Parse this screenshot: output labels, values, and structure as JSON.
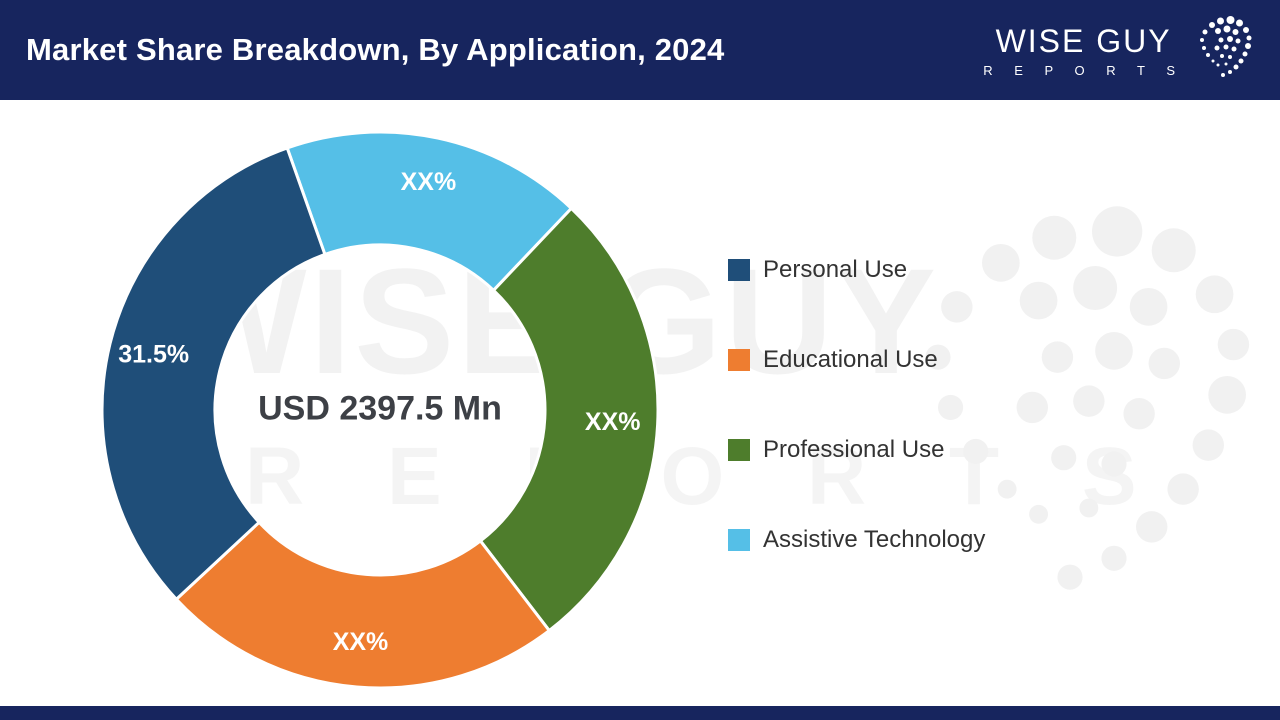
{
  "header": {
    "title": "Market Share Breakdown, By Application, 2024",
    "logo": {
      "line1": "WISE GUY",
      "line2": "R E P O R T S"
    }
  },
  "watermark": {
    "line1": "WISE GUY",
    "line2": "R E P O R T S"
  },
  "chart_data": {
    "type": "donut",
    "title": "Market Share Breakdown, By Application, 2024",
    "center_label": "USD 2397.5 Mn",
    "unit": "%",
    "start_angle_deg": -109.5,
    "segments": [
      {
        "name": "Assistive Technology",
        "value": 17.5,
        "display_label": "XX%",
        "color": "#55bfe7"
      },
      {
        "name": "Professional Use",
        "value": 27.5,
        "display_label": "XX%",
        "color": "#4e7d2c"
      },
      {
        "name": "Educational Use",
        "value": 23.5,
        "display_label": "XX%",
        "color": "#ee7d30"
      },
      {
        "name": "Personal Use",
        "value": 31.5,
        "display_label": "31.5%",
        "color": "#1f4e79"
      }
    ],
    "legend_position": "right",
    "legend_items": [
      {
        "label": "Personal Use",
        "color": "#1f4e79"
      },
      {
        "label": "Educational Use",
        "color": "#ee7d30"
      },
      {
        "label": "Professional Use",
        "color": "#4e7d2c"
      },
      {
        "label": "Assistive Technology",
        "color": "#55bfe7"
      }
    ]
  }
}
